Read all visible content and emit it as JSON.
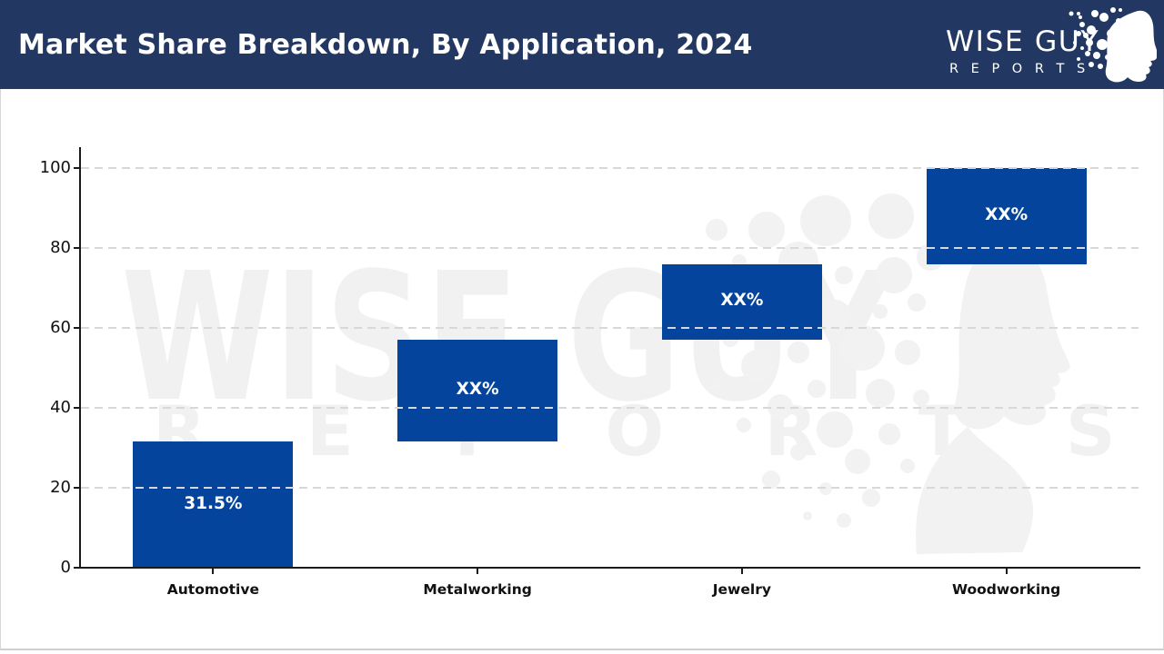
{
  "header": {
    "title": "Market Share Breakdown, By Application, 2024",
    "logo": {
      "line1": "WISE GUY",
      "line2": "R E P O R T S"
    }
  },
  "watermark": {
    "line1": "WISE GUY",
    "line2": "R E P O R T S"
  },
  "colors": {
    "header_bg": "#223862",
    "bar": "#04449c",
    "grid": "#d8d8d8",
    "axis": "#1a1a1a",
    "bar_label": "#ffffff",
    "watermark": "#f1f1f1",
    "frame_border": "#d6d6d6"
  },
  "chart_data": {
    "type": "bar",
    "subtype": "waterfall",
    "title": "Market Share Breakdown, By Application, 2024",
    "categories": [
      "Automotive",
      "Metalworking",
      "Jewelry",
      "Woodworking"
    ],
    "segments": [
      {
        "category": "Automotive",
        "start": 0,
        "end": 31.5,
        "value": 31.5,
        "label": "31.5%"
      },
      {
        "category": "Metalworking",
        "start": 31.5,
        "end": 57,
        "value": 25.5,
        "label": "XX%"
      },
      {
        "category": "Jewelry",
        "start": 57,
        "end": 76,
        "value": 19,
        "label": "XX%"
      },
      {
        "category": "Woodworking",
        "start": 76,
        "end": 100,
        "value": 24,
        "label": "XX%"
      }
    ],
    "yticks": [
      0,
      20,
      40,
      60,
      80,
      100
    ],
    "ylim": [
      0,
      105
    ],
    "xlabel": "",
    "ylabel": "",
    "grid": "horizontal-dashed",
    "legend": "none"
  }
}
